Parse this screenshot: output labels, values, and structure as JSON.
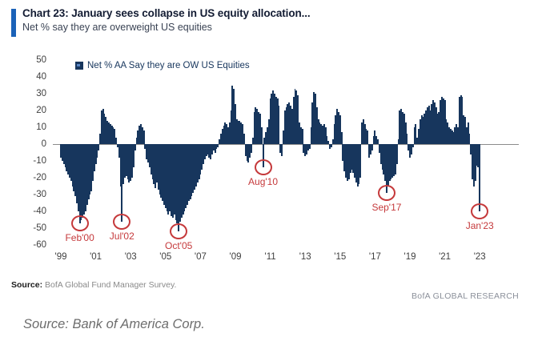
{
  "header": {
    "title": "Chart 23: January sees collapse in US equity allocation...",
    "subtitle": "Net % say they are overweight US equities",
    "accent_color": "#1b62b8"
  },
  "chart_data": {
    "type": "bar",
    "legend": "Net % AA Say they are OW US Equities",
    "series_name": "Net % AA Say they are OW US Equities",
    "bar_color": "#17365d",
    "annotation_color": "#c5393b",
    "zero_line_color": "#8c8c8c",
    "ylim": [
      -60,
      50
    ],
    "y_ticks": [
      50,
      40,
      30,
      20,
      10,
      0,
      -10,
      -20,
      -30,
      -40,
      -50,
      -60
    ],
    "x_tick_labels": [
      "'99",
      "'01",
      "'03",
      "'05",
      "'07",
      "'09",
      "'11",
      "'13",
      "'15",
      "'17",
      "'19",
      "'21",
      "'23"
    ],
    "start_year": 1999,
    "start_month": 1,
    "frequency": "monthly",
    "values": [
      -8,
      -10,
      -12,
      -14,
      -16,
      -18,
      -20,
      -22,
      -25,
      -28,
      -31,
      -35,
      -40,
      -47,
      -45,
      -44,
      -42,
      -40,
      -36,
      -33,
      -30,
      -28,
      -22,
      -16,
      -12,
      -8,
      -4,
      6,
      20,
      21,
      18,
      16,
      14,
      13,
      12,
      11,
      10,
      9,
      4,
      -2,
      -8,
      -25,
      -46,
      -24,
      -20,
      -19,
      -21,
      -23,
      -22,
      -20,
      -14,
      -4,
      4,
      8,
      11,
      12,
      10,
      8,
      -3,
      -9,
      -11,
      -14,
      -18,
      -21,
      -24,
      -26,
      -23,
      -27,
      -30,
      -32,
      -34,
      -36,
      -38,
      -40,
      -42,
      -40,
      -43,
      -44,
      -42,
      -45,
      -47,
      -52,
      -46,
      -44,
      -42,
      -40,
      -38,
      -36,
      -34,
      -33,
      -31,
      -29,
      -27,
      -25,
      -23,
      -21,
      -18,
      -15,
      -12,
      -9,
      -7,
      -6,
      -8,
      -9,
      -6,
      -4,
      -5,
      -3,
      -2,
      3,
      6,
      9,
      11,
      13,
      12,
      10,
      13,
      20,
      35,
      33,
      24,
      15,
      14,
      14,
      13,
      12,
      6,
      -7,
      -10,
      -11,
      -8,
      -5,
      4,
      19,
      22,
      21,
      19,
      18,
      10,
      -14,
      4,
      7,
      10,
      15,
      27,
      30,
      32,
      30,
      28,
      27,
      23,
      -5,
      -7,
      8,
      20,
      22,
      24,
      25,
      23,
      21,
      28,
      33,
      32,
      29,
      13,
      10,
      9,
      -5,
      -7,
      -6,
      -4,
      -3,
      10,
      25,
      31,
      30,
      22,
      15,
      13,
      12,
      11,
      12,
      10,
      5,
      2,
      -3,
      -2,
      3,
      12,
      17,
      21,
      19,
      17,
      7,
      -10,
      -16,
      -20,
      -22,
      -21,
      -17,
      -15,
      -17,
      -20,
      -23,
      -25,
      -24,
      -20,
      13,
      15,
      12,
      9,
      8,
      -8,
      -6,
      -4,
      5,
      8,
      5,
      3,
      -5,
      -12,
      -15,
      -18,
      -22,
      -29,
      -25,
      -22,
      -21,
      -20,
      -19,
      -18,
      -12,
      3,
      20,
      21,
      19,
      18,
      13,
      6,
      -4,
      -8,
      -6,
      -2,
      10,
      12,
      4,
      9,
      15,
      17,
      16,
      18,
      20,
      22,
      23,
      20,
      24,
      26,
      25,
      22,
      18,
      19,
      26,
      28,
      27,
      26,
      15,
      13,
      10,
      9,
      8,
      7,
      10,
      12,
      10,
      28,
      29,
      28,
      17,
      16,
      10,
      13,
      6,
      -6,
      -21,
      -25,
      -22,
      -13,
      -14,
      -40
    ],
    "annotations": [
      {
        "label": "Feb'00",
        "month_index": 13,
        "value": -47
      },
      {
        "label": "Jul'02",
        "month_index": 42,
        "value": -46
      },
      {
        "label": "Oct'05",
        "month_index": 81,
        "value": -52
      },
      {
        "label": "Aug'10",
        "month_index": 139,
        "value": -14
      },
      {
        "label": "Sep'17",
        "month_index": 224,
        "value": -29
      },
      {
        "label": "Jan'23",
        "month_index": 288,
        "value": -40
      }
    ]
  },
  "footer": {
    "source_label": "Source:",
    "source_text": " BofA Global Fund Manager Survey.",
    "brand": "BofA GLOBAL RESEARCH"
  },
  "caption": "Source: Bank of America Corp."
}
